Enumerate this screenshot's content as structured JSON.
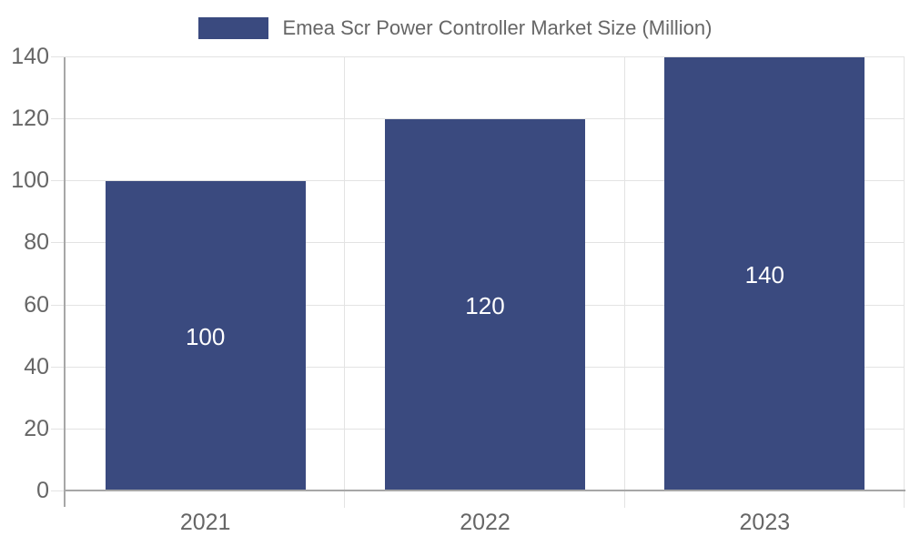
{
  "legend": {
    "label": "Emea Scr Power Controller Market Size (Million)"
  },
  "chart_data": {
    "type": "bar",
    "title": "Emea Scr Power Controller Market Size (Million)",
    "categories": [
      "2021",
      "2022",
      "2023"
    ],
    "values": [
      100,
      120,
      140
    ],
    "value_labels": [
      "100",
      "120",
      "140"
    ],
    "xlabel": "",
    "ylabel": "",
    "ylim": [
      0,
      140
    ],
    "yticks": [
      0,
      20,
      40,
      60,
      80,
      100,
      120,
      140
    ],
    "grid": true,
    "legend_position": "top-center",
    "colors": {
      "bar": "#3A4A7F",
      "bar_value_text": "#ffffff",
      "axis_text": "#666666",
      "gridline": "#e3e3e3",
      "axis_line": "#a7a7a7",
      "background": "#ffffff"
    }
  }
}
